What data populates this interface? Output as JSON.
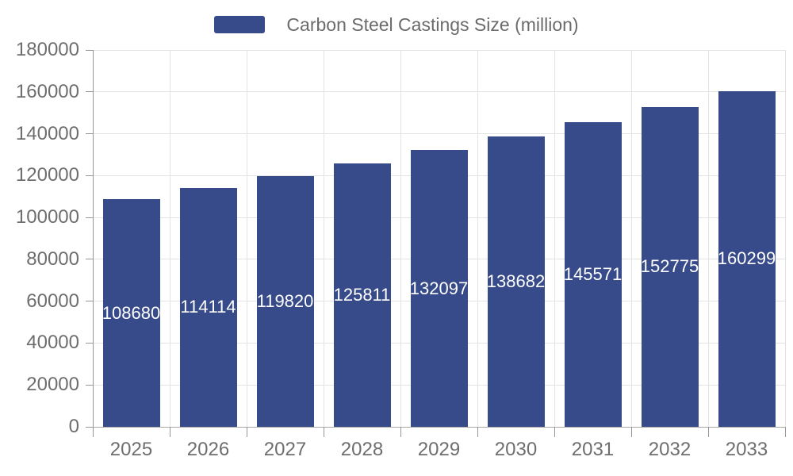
{
  "legend": {
    "label": "Carbon Steel Castings Size (million)"
  },
  "colors": {
    "bar": "#374a8a",
    "axis_text": "#6e6e6e",
    "grid_line": "#e3e3e3",
    "axis_line": "#969696",
    "bar_label_text": "#ffffff",
    "background": "#ffffff"
  },
  "chart_data": {
    "type": "bar",
    "title": "Carbon Steel Castings Size (million)",
    "categories": [
      "2025",
      "2026",
      "2027",
      "2028",
      "2029",
      "2030",
      "2031",
      "2032",
      "2033"
    ],
    "values": [
      108680,
      114114,
      119820,
      125811,
      132097,
      138682,
      145571,
      152775,
      160299
    ],
    "xlabel": "",
    "ylabel": "",
    "ylim": [
      0,
      180000
    ],
    "y_ticks": [
      0,
      20000,
      40000,
      60000,
      80000,
      100000,
      120000,
      140000,
      160000,
      180000
    ],
    "grid": true,
    "legend_position": "top",
    "bar_labels_inside": true
  }
}
